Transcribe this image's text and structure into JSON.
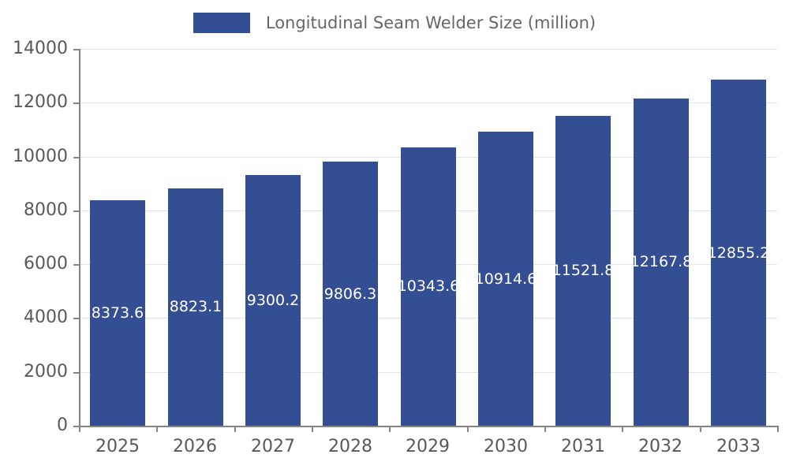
{
  "legend": {
    "label": "Longitudinal Seam Welder Size (million)"
  },
  "chart_data": {
    "type": "bar",
    "title": "Longitudinal Seam Welder Size (million)",
    "categories": [
      "2025",
      "2026",
      "2027",
      "2028",
      "2029",
      "2030",
      "2031",
      "2032",
      "2033"
    ],
    "values": [
      8373.6,
      8823.1,
      9300.2,
      9806.3,
      10343.6,
      10914.6,
      11521.8,
      12167.8,
      12855.2
    ],
    "value_labels": [
      "8373.6",
      "8823.1",
      "9300.2",
      "9806.3",
      "10343.6",
      "10914.6",
      "11521.8",
      "12167.8",
      "12855.2"
    ],
    "xlabel": "",
    "ylabel": "",
    "ylim": [
      0,
      14000
    ],
    "ytick_step": 2000,
    "ytick_labels": [
      "0",
      "2000",
      "4000",
      "6000",
      "8000",
      "10000",
      "12000",
      "14000"
    ],
    "grid": true,
    "legend_position": "top"
  },
  "colors": {
    "bar": "#344e94",
    "bar_label": "#ffffff",
    "grid": "#e3e3e3",
    "axis": "#848484",
    "tick_text": "#595959",
    "legend_text": "#666666",
    "background": "#ffffff"
  }
}
